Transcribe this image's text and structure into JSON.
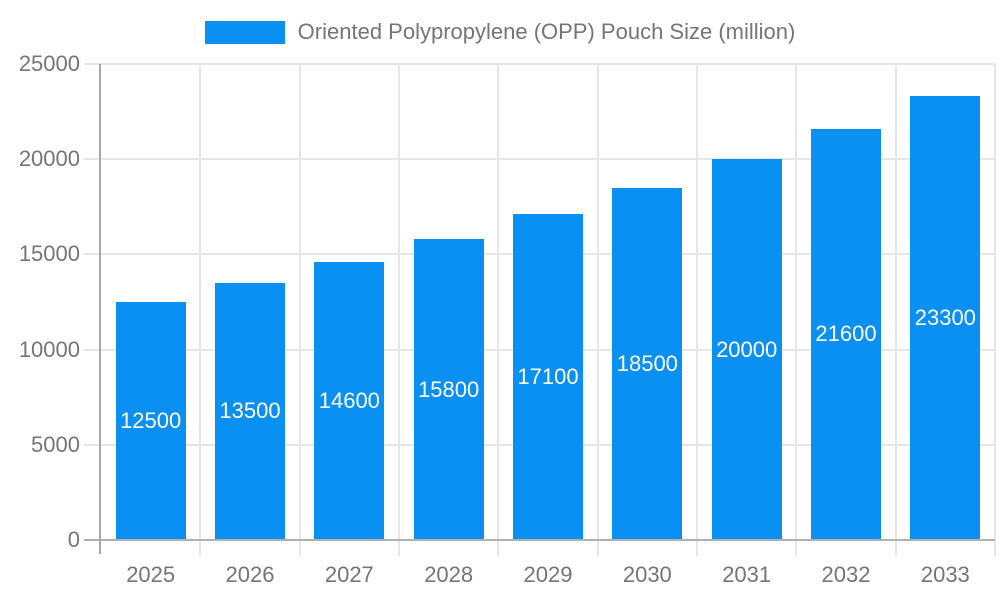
{
  "chart_data": {
    "type": "bar",
    "title": "",
    "categories": [
      "2025",
      "2026",
      "2027",
      "2028",
      "2029",
      "2030",
      "2031",
      "2032",
      "2033"
    ],
    "series": [
      {
        "name": "Oriented Polypropylene (OPP) Pouch Size (million)",
        "values": [
          12500,
          13500,
          14600,
          15800,
          17100,
          18500,
          20000,
          21600,
          23300
        ]
      }
    ],
    "xlabel": "",
    "ylabel": "",
    "ylim": [
      0,
      25000
    ],
    "yticks": [
      0,
      5000,
      10000,
      15000,
      20000,
      25000
    ],
    "grid": true,
    "legend_position": "top",
    "bar_value_labels": true
  },
  "colors": {
    "bar": "#0a8ff2",
    "bar_label_text": "#ffffff",
    "axis_text": "#757575",
    "gridline": "#e6e6e6",
    "axis_line": "#a6a6a6",
    "baseline": "#b0b0b0",
    "background": "#ffffff"
  }
}
